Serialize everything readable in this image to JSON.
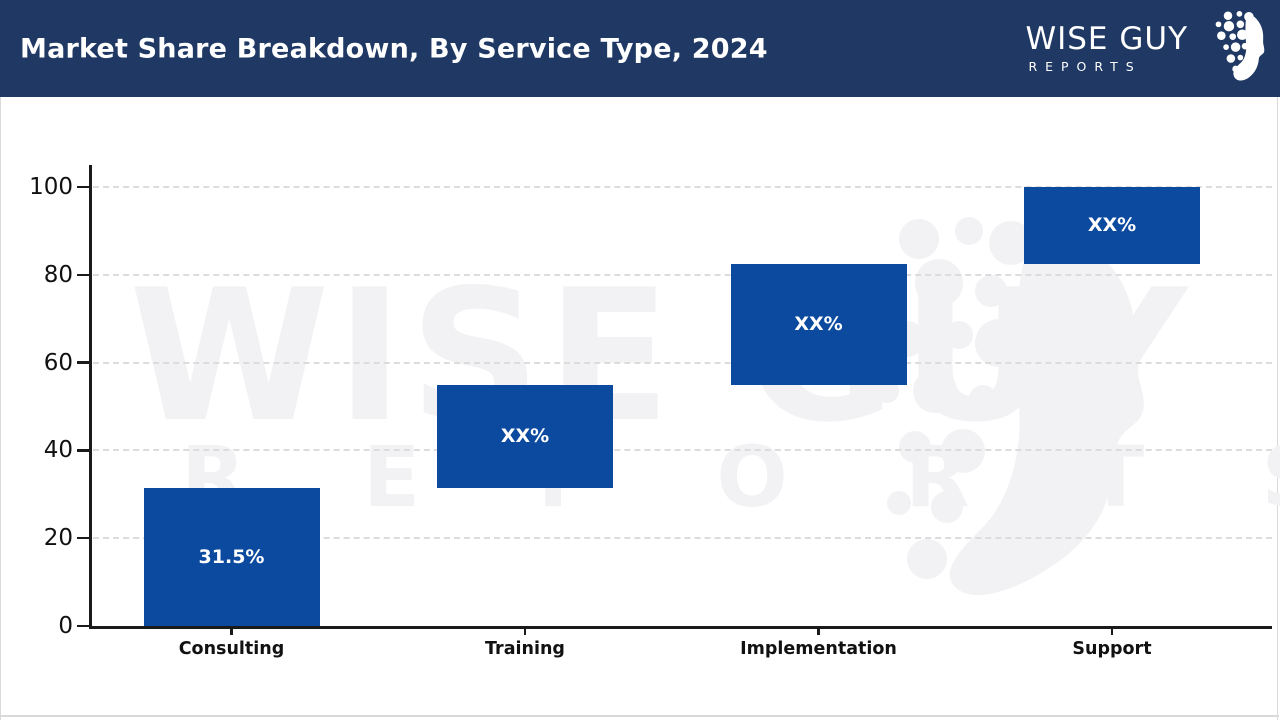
{
  "header": {
    "title": "Market Share Breakdown, By Service Type, 2024",
    "brand_line1": "WISE GUY",
    "brand_line2": "REPORTS",
    "bg_color": "#1f3864"
  },
  "watermark": {
    "line1": "WISE GUY",
    "line2": "R E P O R T S"
  },
  "chart_data": {
    "type": "bar",
    "subtype": "waterfall",
    "title": "Market Share Breakdown, By Service Type, 2024",
    "categories": [
      "Consulting",
      "Training",
      "Implementation",
      "Support"
    ],
    "segments": [
      {
        "category": "Consulting",
        "start": 0,
        "end": 31.5,
        "value_label": "31.5%"
      },
      {
        "category": "Training",
        "start": 31.5,
        "end": 55,
        "value_label": "XX%"
      },
      {
        "category": "Implementation",
        "start": 55,
        "end": 82.5,
        "value_label": "XX%"
      },
      {
        "category": "Support",
        "start": 82.5,
        "end": 100,
        "value_label": "XX%"
      }
    ],
    "y_ticks": [
      0,
      20,
      40,
      60,
      80,
      100
    ],
    "ylim": [
      0,
      100
    ],
    "grid": true,
    "grid_style": "dashed",
    "bar_color": "#0b4a9f",
    "label_color": "#ffffff",
    "axis_color": "#1a1a1a",
    "grid_color": "#dcdcdc",
    "xlabel": "",
    "ylabel": ""
  }
}
